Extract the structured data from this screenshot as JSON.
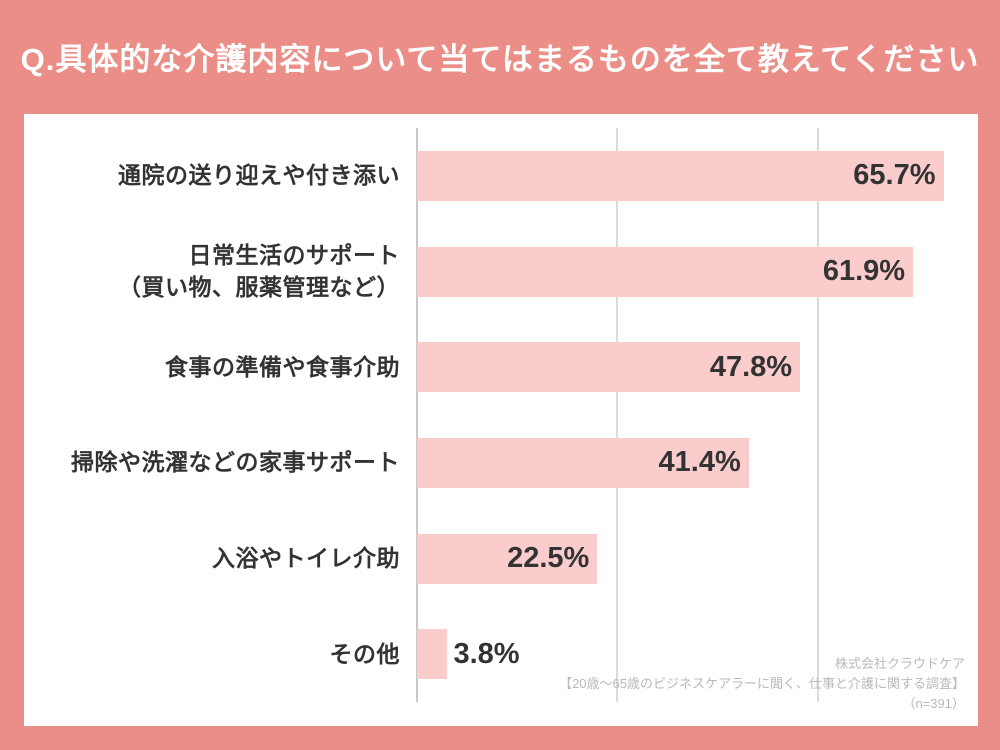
{
  "title": "Q.具体的な介護内容について当てはまるものを全て教えてください",
  "source": {
    "line1": "株式会社クラウドケア",
    "line2": "【20歳～65歳のビジネスケアラーに聞く、仕事と介護に関する調査】",
    "line3": "（n=391）"
  },
  "colors": {
    "background": "#EC8E88",
    "card": "#FFFFFF",
    "bar": "#FACDCC",
    "title_text": "#FFFFFF",
    "text_dark": "#333333",
    "gridline": "#DCDCDC",
    "axis": "#C8C8C8",
    "source_text": "#B9B9B9"
  },
  "chart_data": {
    "type": "bar",
    "orientation": "horizontal",
    "title": "Q.具体的な介護内容について当てはまるものを全て教えてください",
    "categories": [
      "通院の送り迎えや付き添い",
      "日常生活のサポート\n（買い物、服薬管理など）",
      "食事の準備や食事介助",
      "掃除や洗濯などの家事サポート",
      "入浴やトイレ介助",
      "その他"
    ],
    "values": [
      65.7,
      61.9,
      47.8,
      41.4,
      22.5,
      3.8
    ],
    "value_labels": [
      "65.7%",
      "61.9%",
      "47.8%",
      "41.4%",
      "22.5%",
      "3.8%"
    ],
    "xlabel": "",
    "ylabel": "",
    "xlim": [
      0,
      70
    ],
    "gridlines_percent": [
      0,
      25,
      50
    ],
    "grid": true,
    "legend": false
  }
}
